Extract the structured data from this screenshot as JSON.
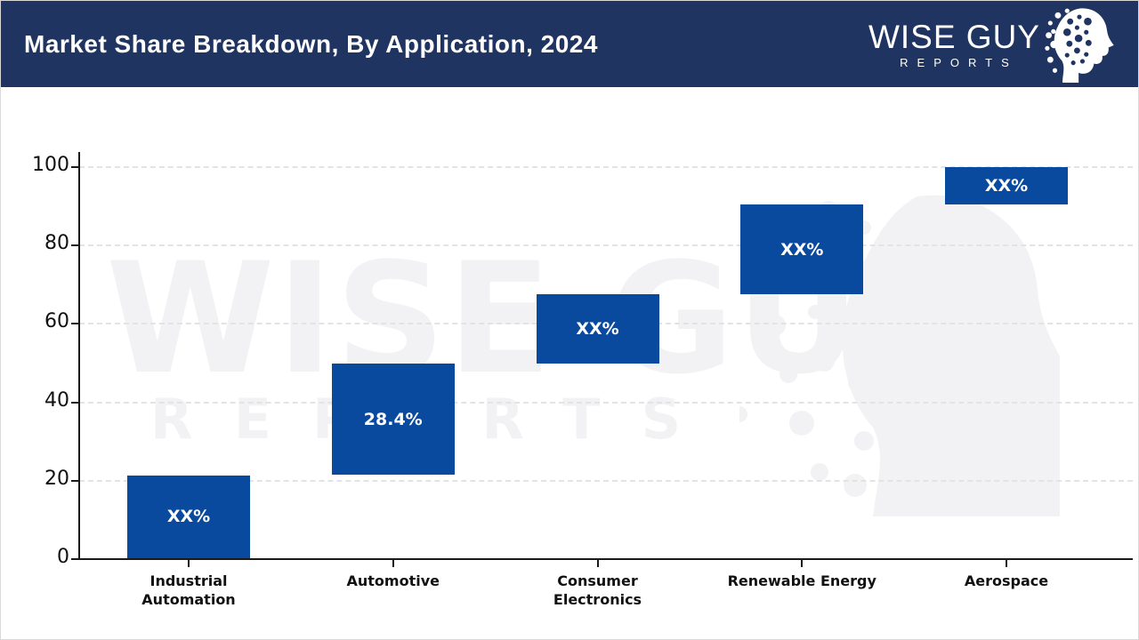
{
  "header": {
    "title": "Market Share Breakdown, By Application, 2024",
    "logo": {
      "line1": "WISE GUY",
      "line2": "REPORTS",
      "head_icon": "dotted-face-profile"
    }
  },
  "watermark": {
    "line1": "WISE GUY",
    "line2": "REPORTS",
    "head_icon": "dotted-face-profile"
  },
  "chart_data": {
    "type": "bar",
    "subtype": "waterfall",
    "title": "Market Share Breakdown, By Application, 2024",
    "categories": [
      "Industrial Automation",
      "Automotive",
      "Consumer Electronics",
      "Renewable Energy",
      "Aerospace"
    ],
    "segments": [
      {
        "category": "Industrial Automation",
        "label_lines": [
          "Industrial",
          "Automation"
        ],
        "start": 0,
        "end": 21.2,
        "bar_label": "XX%"
      },
      {
        "category": "Automotive",
        "label_lines": [
          "Automotive"
        ],
        "start": 21.2,
        "end": 49.6,
        "bar_label": "28.4%"
      },
      {
        "category": "Consumer Electronics",
        "label_lines": [
          "Consumer",
          "Electronics"
        ],
        "start": 49.6,
        "end": 67.3,
        "bar_label": "XX%"
      },
      {
        "category": "Renewable Energy",
        "label_lines": [
          "Renewable Energy"
        ],
        "start": 67.3,
        "end": 90.2,
        "bar_label": "XX%"
      },
      {
        "category": "Aerospace",
        "label_lines": [
          "Aerospace"
        ],
        "start": 90.2,
        "end": 99.8,
        "bar_label": "XX%"
      }
    ],
    "xlabel": "",
    "ylabel": "",
    "yticks": [
      0,
      20,
      40,
      60,
      80,
      100
    ],
    "ylim": [
      0,
      104
    ],
    "grid": "horizontal-dashed",
    "legend": "none",
    "colors": {
      "bar": "#0a4a9e",
      "header_background": "#1f3461",
      "gridline": "#e3e3e3",
      "axis": "#1a1a1a",
      "bar_label_text": "#ffffff",
      "watermark": "#f2f2f4"
    }
  }
}
